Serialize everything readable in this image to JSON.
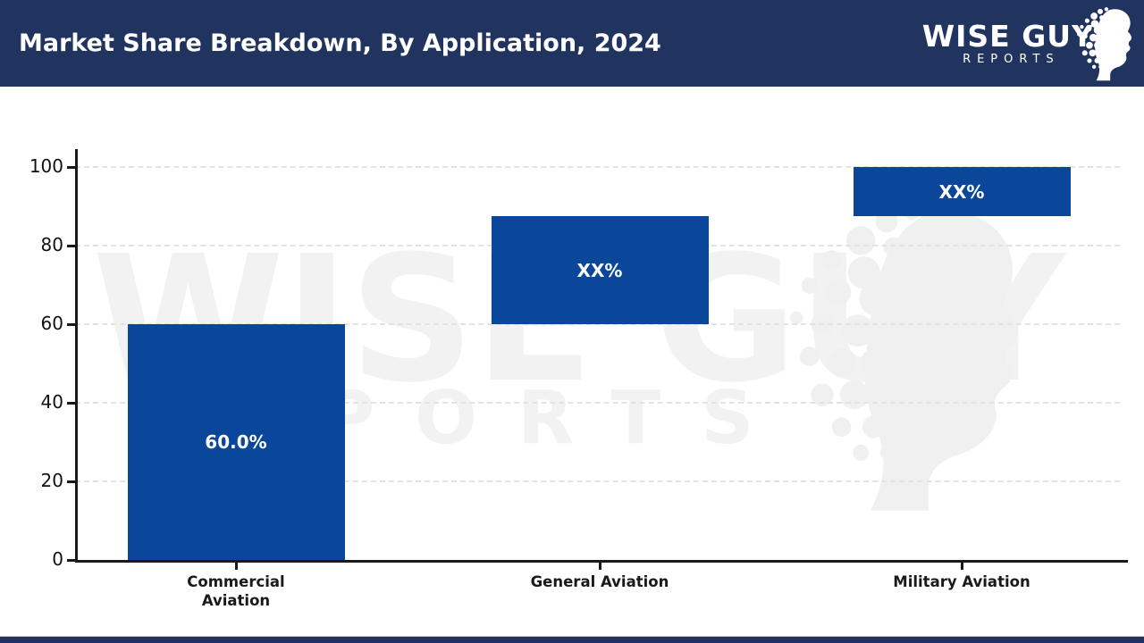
{
  "header": {
    "title": "Market Share Breakdown, By Application, 2024",
    "logo": {
      "name": "WISE GUY",
      "tagline": "REPORTS"
    }
  },
  "watermark": {
    "line1": "WISE GUY",
    "line2": "REPORTS"
  },
  "colors": {
    "header_bg": "#20345f",
    "footer_bg": "#20345f",
    "bar_blue": "#0a4699",
    "grid": "#e3e3e3",
    "axis": "#1a1a1a",
    "bar_label_text": "#ffffff",
    "watermark_gray": "#f2f2f2"
  },
  "chart_data": {
    "type": "bar",
    "subtype": "stacked-waterfall",
    "title": "Market Share Breakdown, By Application, 2024",
    "categories": [
      "Commercial\nAviation",
      "General Aviation",
      "Military Aviation"
    ],
    "segments": [
      {
        "category": "Commercial Aviation",
        "start": 0,
        "end": 60,
        "value": 60.0,
        "label": "60.0%"
      },
      {
        "category": "General Aviation",
        "start": 60,
        "end": 87.5,
        "value": 27.5,
        "label": "XX%"
      },
      {
        "category": "Military Aviation",
        "start": 87.5,
        "end": 100,
        "value": 12.5,
        "label": "XX%"
      }
    ],
    "yticks": [
      0,
      20,
      40,
      60,
      80,
      100
    ],
    "ylim": [
      0,
      104
    ],
    "xlabel": "",
    "ylabel": "",
    "grid": "horizontal-dashed",
    "legend": "none",
    "bar_color": "#0a4699"
  }
}
